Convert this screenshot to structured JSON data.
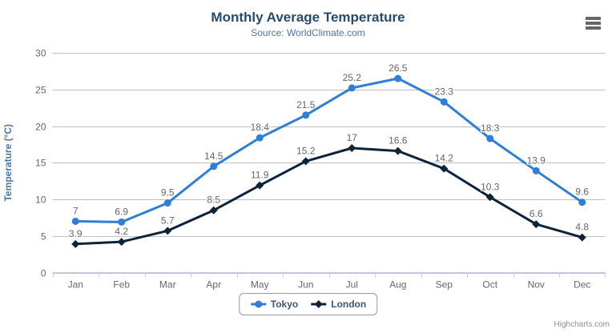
{
  "chart_data": {
    "type": "line",
    "title": "Monthly Average Temperature",
    "subtitle": "Source: WorldClimate.com",
    "categories": [
      "Jan",
      "Feb",
      "Mar",
      "Apr",
      "May",
      "Jun",
      "Jul",
      "Aug",
      "Sep",
      "Oct",
      "Nov",
      "Dec"
    ],
    "series": [
      {
        "name": "Tokyo",
        "color": "#2f7ed8",
        "marker": "circle",
        "values": [
          7,
          6.9,
          9.5,
          14.5,
          18.4,
          21.5,
          25.2,
          26.5,
          23.3,
          18.3,
          13.9,
          9.6
        ]
      },
      {
        "name": "London",
        "color": "#0d233a",
        "marker": "diamond",
        "values": [
          3.9,
          4.2,
          5.7,
          8.5,
          11.9,
          15.2,
          17,
          16.6,
          14.2,
          10.3,
          6.6,
          4.8
        ]
      }
    ],
    "xlabel": "",
    "ylabel": "Temperature (°C)",
    "ylim": [
      0,
      30
    ],
    "ytick_interval": 5,
    "grid": true,
    "legend_position": "bottom",
    "data_labels": true
  },
  "credits": "Highcharts.com",
  "icons": {
    "menu": "hamburger-icon"
  },
  "colors": {
    "grid": "#c0c0c0",
    "axis_line": "#c0d0e0",
    "axis_labels": "#666666",
    "axis_title": "#4d759e",
    "data_labels": "#666666"
  }
}
